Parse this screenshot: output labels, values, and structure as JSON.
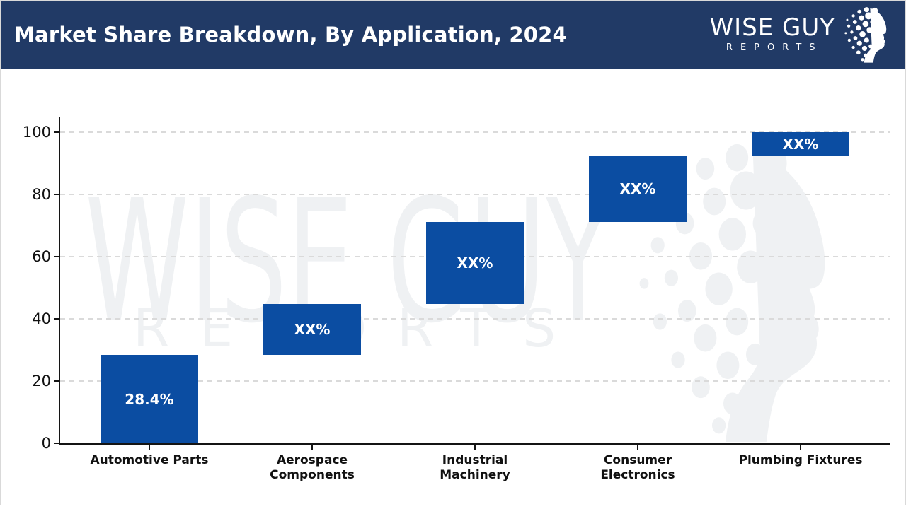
{
  "header": {
    "title": "Market Share Breakdown, By Application, 2024",
    "logo": {
      "line1": "WISE GUY",
      "line2": "REPORTS"
    }
  },
  "watermark": {
    "line1": "WISE GUY",
    "line2": "REPORTS"
  },
  "chart_data": {
    "type": "bar",
    "subtype": "waterfall",
    "title": "Market Share Breakdown, By Application, 2024",
    "categories": [
      "Automotive Parts",
      "Aerospace Components",
      "Industrial Machinery",
      "Consumer Electronics",
      "Plumbing Fixtures"
    ],
    "bars": [
      {
        "category": "Automotive Parts",
        "label_lines": [
          "Automotive Parts"
        ],
        "start": 0,
        "end": 28.4,
        "value_label": "28.4%"
      },
      {
        "category": "Aerospace Components",
        "label_lines": [
          "Aerospace",
          "Components"
        ],
        "start": 28.4,
        "end": 44.7,
        "value_label": "XX%"
      },
      {
        "category": "Industrial Machinery",
        "label_lines": [
          "Industrial",
          "Machinery"
        ],
        "start": 44.7,
        "end": 71.2,
        "value_label": "XX%"
      },
      {
        "category": "Consumer Electronics",
        "label_lines": [
          "Consumer",
          "Electronics"
        ],
        "start": 71.2,
        "end": 92.3,
        "value_label": "XX%"
      },
      {
        "category": "Plumbing Fixtures",
        "label_lines": [
          "Plumbing Fixtures"
        ],
        "start": 92.3,
        "end": 100,
        "value_label": "XX%"
      }
    ],
    "ylim": [
      0,
      100
    ],
    "yticks": [
      0,
      20,
      40,
      60,
      80,
      100
    ],
    "grid": true,
    "legend": false,
    "xlabel": "",
    "ylabel": ""
  },
  "colors": {
    "header_bg": "#213a66",
    "bar": "#0b4da2",
    "bar_label": "#ffffff",
    "axis": "#141414",
    "grid": "#dadada",
    "watermark": "#eff1f3"
  }
}
